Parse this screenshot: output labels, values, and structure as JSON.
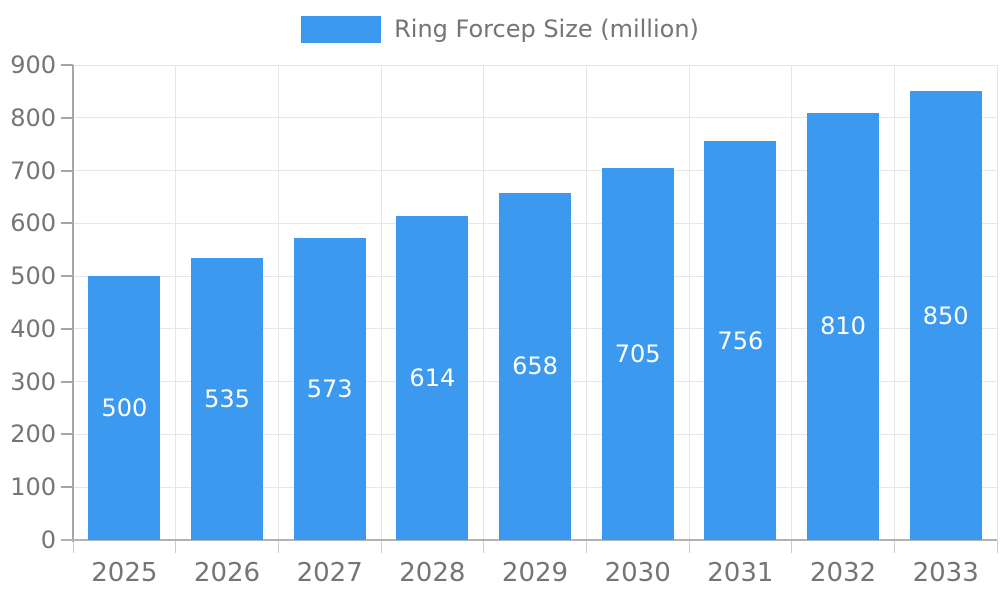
{
  "chart_data": {
    "type": "bar",
    "title": "",
    "legend": "Ring Forcep Size (million)",
    "legend_position": "top",
    "categories": [
      "2025",
      "2026",
      "2027",
      "2028",
      "2029",
      "2030",
      "2031",
      "2032",
      "2033"
    ],
    "values": [
      500,
      535,
      573,
      614,
      658,
      705,
      756,
      810,
      850
    ],
    "xlabel": "",
    "ylabel": "",
    "ylim": [
      0,
      900
    ],
    "ytick_step": 100,
    "grid": "horizontal and vertical light gridlines",
    "colors": {
      "bar": "#3B99F0",
      "bar_value_text": "#ffffff",
      "axis_text": "#757575",
      "legend_text": "#757575",
      "gridline": "#e6e6e6",
      "y_axis_line": "#a6a6a6",
      "x_axis_line": "#b3b3b3",
      "y_tick": "#a6a6a6",
      "x_tick": "#cccccc",
      "background": "#ffffff"
    }
  }
}
